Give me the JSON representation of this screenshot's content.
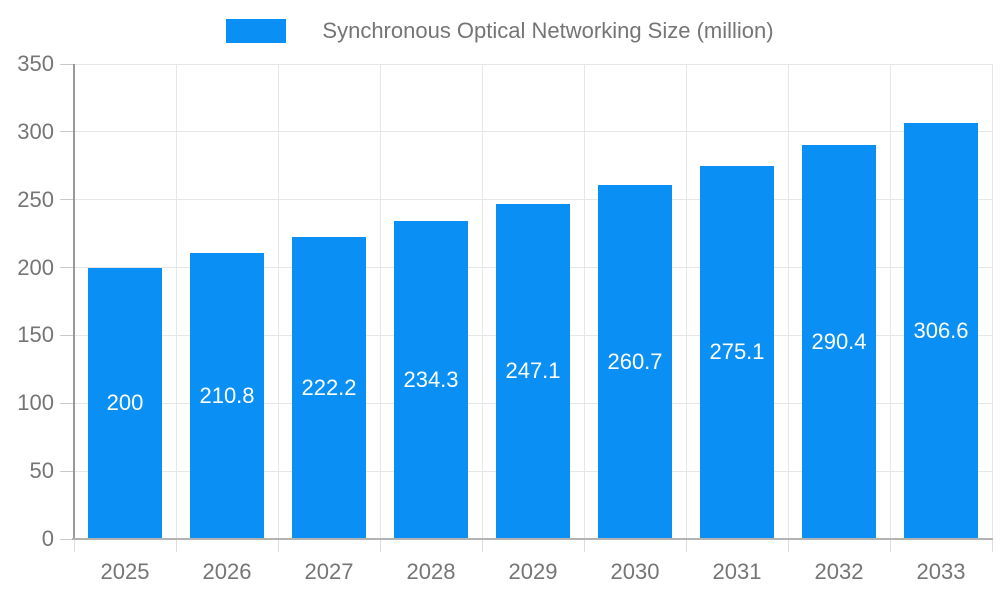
{
  "chart_data": {
    "type": "bar",
    "title": "Synchronous Optical Networking Size (million)",
    "categories": [
      "2025",
      "2026",
      "2027",
      "2028",
      "2029",
      "2030",
      "2031",
      "2032",
      "2033"
    ],
    "values": [
      200,
      210.8,
      222.2,
      234.3,
      247.1,
      260.7,
      275.1,
      290.4,
      306.6
    ],
    "xlabel": "",
    "ylabel": "",
    "ylim": [
      0,
      350
    ],
    "yticks": [
      0,
      50,
      100,
      150,
      200,
      250,
      300,
      350
    ],
    "grid": true,
    "legend_position": "top",
    "value_labels_inside_bars": true
  },
  "colors": {
    "bar": "#0a90f5",
    "axis_text": "#757575",
    "value_label": "#ffffff"
  }
}
